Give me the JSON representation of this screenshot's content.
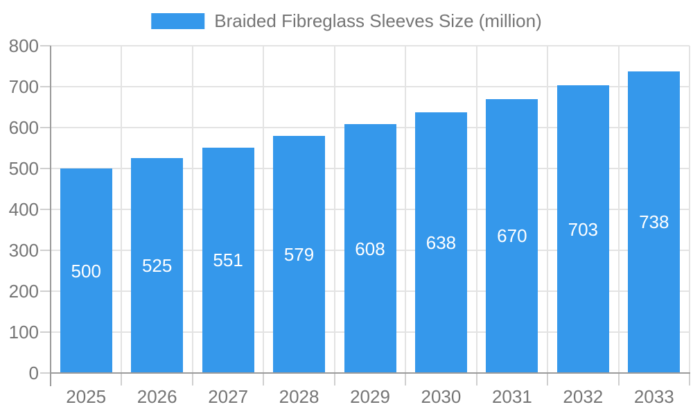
{
  "chart_data": {
    "type": "bar",
    "title": "",
    "legend": "Braided Fibreglass Sleeves Size (million)",
    "legend_position": "top",
    "categories": [
      "2025",
      "2026",
      "2027",
      "2028",
      "2029",
      "2030",
      "2031",
      "2032",
      "2033"
    ],
    "values": [
      500,
      525,
      551,
      579,
      608,
      638,
      670,
      703,
      738
    ],
    "value_labels_shown": true,
    "xlabel": "",
    "ylabel": "",
    "ylim": [
      0,
      800
    ],
    "y_ticks": [
      0,
      100,
      200,
      300,
      400,
      500,
      600,
      700,
      800
    ],
    "grid": true,
    "colors": {
      "bar": "#3598eb",
      "grid": "#e3e3e3",
      "axis": "#9a9a9a",
      "tick": "#cfcfcf",
      "axis_text": "#757575",
      "value_text": "#ffffff",
      "background": "#ffffff"
    }
  }
}
